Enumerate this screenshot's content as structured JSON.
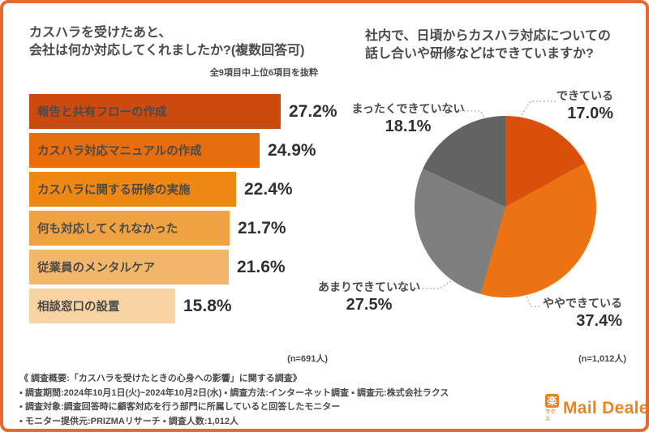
{
  "frame": {
    "border_color": "#e46a33",
    "background": "#ffffff"
  },
  "left_chart": {
    "title_line1": "カスハラを受けたあと、",
    "title_line2": "会社は何か対応してくれましたか?(複数回答可)",
    "subtitle": "全9項目中上位6項目を抜粋",
    "n_label": "(n=691人)"
  },
  "right_chart": {
    "title_line1": "社内で、日頃からカスハラ対応についての",
    "title_line2": "話し合いや研修などはできていますか?",
    "n_label": "(n=1,012人)"
  },
  "chart_data": [
    {
      "type": "bar",
      "orientation": "horizontal",
      "title": "カスハラを受けたあと、会社は何か対応してくれましたか?(複数回答可)",
      "subtitle": "全9項目中上位6項目を抜粋",
      "n": "n=691人",
      "categories": [
        "報告と共有フローの作成",
        "カスハラ対応マニュアルの作成",
        "カスハラに関する研修の実施",
        "何も対応してくれなかった",
        "従業員のメンタルケア",
        "相談窓口の設置"
      ],
      "values": [
        27.2,
        24.9,
        22.4,
        21.7,
        21.6,
        15.8
      ],
      "unit": "%",
      "bar_colors": [
        "#cc4a0e",
        "#e76d0d",
        "#ee8813",
        "#f0a242",
        "#f3b76c",
        "#f8d4a4"
      ],
      "xlim": [
        0,
        30
      ],
      "value_labels_visible": true,
      "grid": false
    },
    {
      "type": "pie",
      "title": "社内で、日頃からカスハラ対応についての話し合いや研修などはできていますか?",
      "n": "n=1,012人",
      "labels": [
        "できている",
        "ややできている",
        "あまりできていない",
        "まったくできていない"
      ],
      "values": [
        17.0,
        37.4,
        27.5,
        18.1
      ],
      "colors": [
        "#db4f0d",
        "#ed7211",
        "#7f7f7f",
        "#636363"
      ],
      "start_angle_deg": 0,
      "direction": "clockwise",
      "leader_line_color": "#999999"
    }
  ],
  "survey": {
    "heading": "《 調査概要:「カスハラを受けたときの心身への影響」に関する調査》",
    "lines": [
      "▪ 調査期間:2024年10月1日(火)~2024年10月2日(水) ▪ 調査方法:インターネット調査 ▪ 調査元:株式会社ラクス",
      "▪ 調査対象:調査回答時に顧客対応を行う部門に所属していると回答したモニター",
      "▪ モニター提供元:PRIZMAリサーチ  ▪ 調査人数:1,012人"
    ]
  },
  "logo": {
    "brand": "Mail Dealer",
    "icon_glyph": "楽",
    "icon_sub": "ラクス",
    "color": "#f0821e"
  }
}
